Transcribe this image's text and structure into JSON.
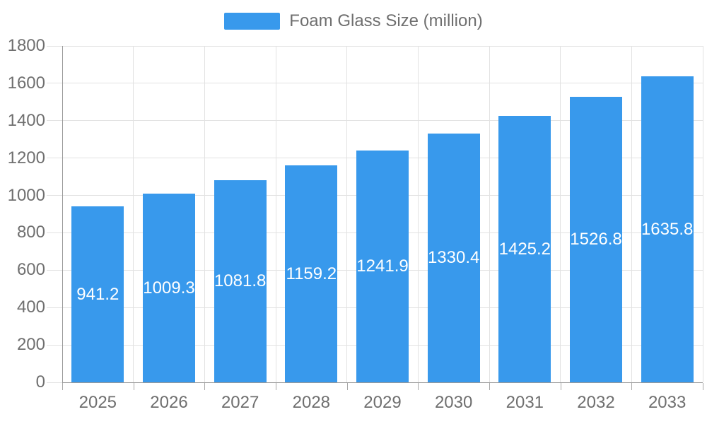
{
  "legend": {
    "label": "Foam Glass Size (million)"
  },
  "chart_data": {
    "type": "bar",
    "title": "Foam Glass Size (million)",
    "categories": [
      "2025",
      "2026",
      "2027",
      "2028",
      "2029",
      "2030",
      "2031",
      "2032",
      "2033"
    ],
    "series": [
      {
        "name": "Foam Glass Size (million)",
        "values": [
          941.2,
          1009.3,
          1081.8,
          1159.2,
          1241.9,
          1330.4,
          1425.2,
          1526.8,
          1635.8
        ]
      }
    ],
    "value_labels": [
      "941.2",
      "1009.3",
      "1081.8",
      "1159.2",
      "1241.9",
      "1330.4",
      "1425.2",
      "1526.8",
      "1635.8"
    ],
    "xlabel": "",
    "ylabel": "",
    "ylim": [
      0,
      1800
    ],
    "yticks": [
      0,
      200,
      400,
      600,
      800,
      1000,
      1200,
      1400,
      1600,
      1800
    ],
    "grid": "horizontal-and-vertical",
    "legend_position": "top-center",
    "colors": {
      "bar": "#3899ec",
      "bar_value_text": "#ffffff",
      "axis_line": "#999999",
      "gridline": "#e2e2e2",
      "tick_text": "#6f6f6f",
      "legend_text": "#6f6f6f",
      "background": "#ffffff"
    }
  }
}
